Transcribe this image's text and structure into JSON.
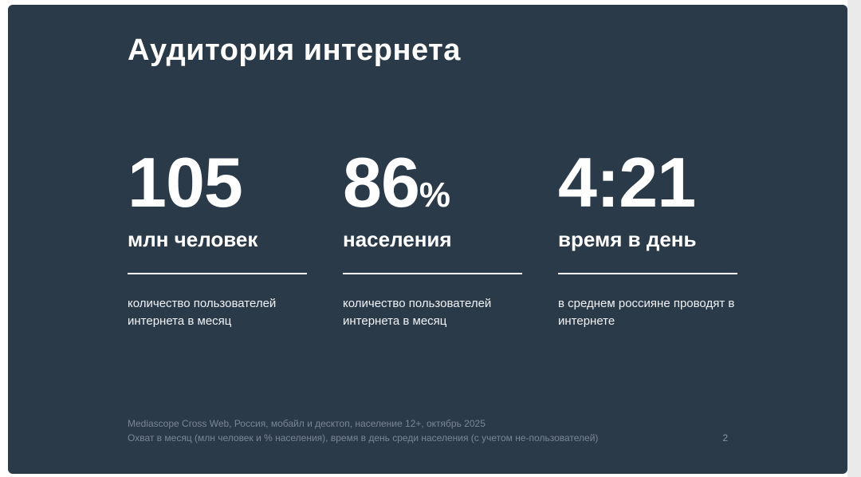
{
  "slide": {
    "title": "Аудитория интернета",
    "stats": [
      {
        "value": "105",
        "suffix": "",
        "label": "млн человек",
        "description": "количество пользователей интернета в месяц"
      },
      {
        "value": "86",
        "suffix": "%",
        "label": "населения",
        "description": "количество пользователей интернета в месяц"
      },
      {
        "value": "4:21",
        "suffix": "",
        "label": "время в день",
        "description": "в среднем россияне проводят в интернете"
      }
    ],
    "footer": {
      "line1": "Mediascope Cross Web, Россия, мобайл и десктоп, население 12+, октябрь 2025",
      "line2": "Охват в месяц (млн человек и % населения), время в день среди населения (с учетом не-пользователей)",
      "page_number": "2"
    },
    "colors": {
      "background": "#2b3a49",
      "text": "#ffffff",
      "muted": "#7b8694"
    }
  }
}
